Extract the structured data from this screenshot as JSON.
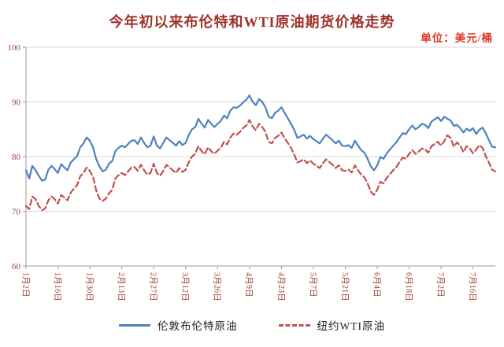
{
  "header": {
    "title": "今年初以来布伦特和WTI原油期货价格走势",
    "unit_label": "单位：美元/桶"
  },
  "colors": {
    "title": "#9e3229",
    "unit": "#d93526",
    "axis_labels": "#a03c33",
    "gridline": "#d9d9d9",
    "axis_line": "#9b9b9b",
    "brent": "#4f81bd",
    "wti": "#c0504d",
    "legend_text": "#222222"
  },
  "chart_data": {
    "type": "line",
    "title": "今年初以来布伦特和WTI原油期货价格走势",
    "unit": "美元/桶",
    "ylim": [
      60,
      100
    ],
    "yticks": [
      60,
      70,
      80,
      90,
      100
    ],
    "grid": "horizontal",
    "legend_position": "bottom",
    "x_tick_interval": 10,
    "x_tick_labels": [
      "1月2日",
      "1月16日",
      "1月30日",
      "2月13日",
      "2月27日",
      "3月12日",
      "3月26日",
      "4月9日",
      "4月23日",
      "5月7日",
      "5月21日",
      "6月4日",
      "6月18日",
      "7月2日",
      "7月16日"
    ],
    "series": [
      {
        "key": "brent",
        "name": "伦敦布伦特原油",
        "color": "#4f81bd",
        "style": "solid",
        "values": [
          77.5,
          76.0,
          78.3,
          77.5,
          76.5,
          75.6,
          75.8,
          77.6,
          78.3,
          77.7,
          77.0,
          78.6,
          78.0,
          77.5,
          78.9,
          79.5,
          80.1,
          81.7,
          82.4,
          83.5,
          82.9,
          81.7,
          79.5,
          78.2,
          77.3,
          77.6,
          78.7,
          79.2,
          81.0,
          81.6,
          82.0,
          81.7,
          82.3,
          82.9,
          83.0,
          82.3,
          83.5,
          82.5,
          81.7,
          82.0,
          83.7,
          82.0,
          81.5,
          82.5,
          83.5,
          83.0,
          82.5,
          82.0,
          82.8,
          82.1,
          82.5,
          84.0,
          85.0,
          85.4,
          86.9,
          86.0,
          85.3,
          86.7,
          86.0,
          85.4,
          86.0,
          86.5,
          87.5,
          87.0,
          88.4,
          89.0,
          88.9,
          89.3,
          89.9,
          90.4,
          91.2,
          90.0,
          89.4,
          90.5,
          90.0,
          89.0,
          87.3,
          87.0,
          88.0,
          88.4,
          89.0,
          88.0,
          87.0,
          86.0,
          84.9,
          83.4,
          83.7,
          84.0,
          83.3,
          83.8,
          83.2,
          82.8,
          82.4,
          83.3,
          84.0,
          83.5,
          83.0,
          82.4,
          82.9,
          82.0,
          81.9,
          82.1,
          81.6,
          82.9,
          82.0,
          81.2,
          80.7,
          79.6,
          78.2,
          77.5,
          78.4,
          79.9,
          79.6,
          80.6,
          81.3,
          82.0,
          82.6,
          83.5,
          84.3,
          84.1,
          85.0,
          85.7,
          85.0,
          85.4,
          86.0,
          85.8,
          85.2,
          86.4,
          86.8,
          87.2,
          86.5,
          87.3,
          86.9,
          86.6,
          85.6,
          85.8,
          85.2,
          84.4,
          85.1,
          84.7,
          85.2,
          84.1,
          84.9,
          85.3,
          84.3,
          83.0,
          81.8,
          81.7
        ]
      },
      {
        "key": "wti",
        "name": "纽约WTI原油",
        "color": "#c0504d",
        "style": "dashed",
        "values": [
          71.0,
          70.4,
          72.7,
          72.2,
          71.0,
          70.2,
          70.5,
          72.0,
          72.7,
          72.2,
          71.4,
          73.0,
          72.5,
          72.0,
          73.4,
          74.1,
          74.8,
          76.4,
          77.0,
          78.0,
          77.4,
          76.3,
          73.8,
          72.3,
          71.9,
          72.3,
          73.3,
          73.9,
          76.0,
          76.6,
          77.0,
          76.6,
          77.3,
          78.0,
          78.1,
          77.4,
          78.5,
          77.5,
          76.7,
          77.0,
          78.7,
          77.0,
          76.5,
          77.4,
          78.5,
          78.0,
          77.5,
          77.0,
          77.9,
          77.2,
          77.6,
          79.0,
          80.0,
          80.5,
          81.9,
          81.0,
          80.4,
          81.7,
          81.0,
          80.5,
          81.1,
          81.6,
          82.7,
          82.2,
          83.5,
          84.2,
          84.0,
          84.5,
          85.2,
          85.7,
          86.7,
          85.5,
          84.8,
          86.0,
          85.4,
          84.5,
          82.7,
          82.4,
          83.4,
          83.8,
          84.4,
          83.4,
          82.5,
          81.6,
          80.4,
          78.9,
          79.2,
          79.5,
          78.8,
          79.3,
          78.7,
          78.3,
          77.9,
          78.8,
          79.5,
          79.0,
          78.5,
          77.9,
          78.4,
          77.5,
          77.4,
          77.6,
          77.1,
          78.4,
          77.5,
          76.7,
          76.2,
          75.1,
          73.6,
          73.0,
          73.9,
          75.4,
          75.1,
          76.1,
          76.8,
          77.5,
          78.1,
          79.0,
          79.8,
          79.6,
          80.5,
          81.2,
          80.5,
          80.9,
          81.5,
          81.3,
          80.7,
          81.9,
          82.3,
          82.7,
          82.0,
          82.8,
          83.9,
          83.4,
          81.8,
          82.6,
          82.0,
          80.8,
          81.9,
          81.5,
          80.6,
          81.3,
          82.1,
          81.6,
          80.1,
          78.9,
          77.6,
          77.3
        ]
      }
    ]
  }
}
